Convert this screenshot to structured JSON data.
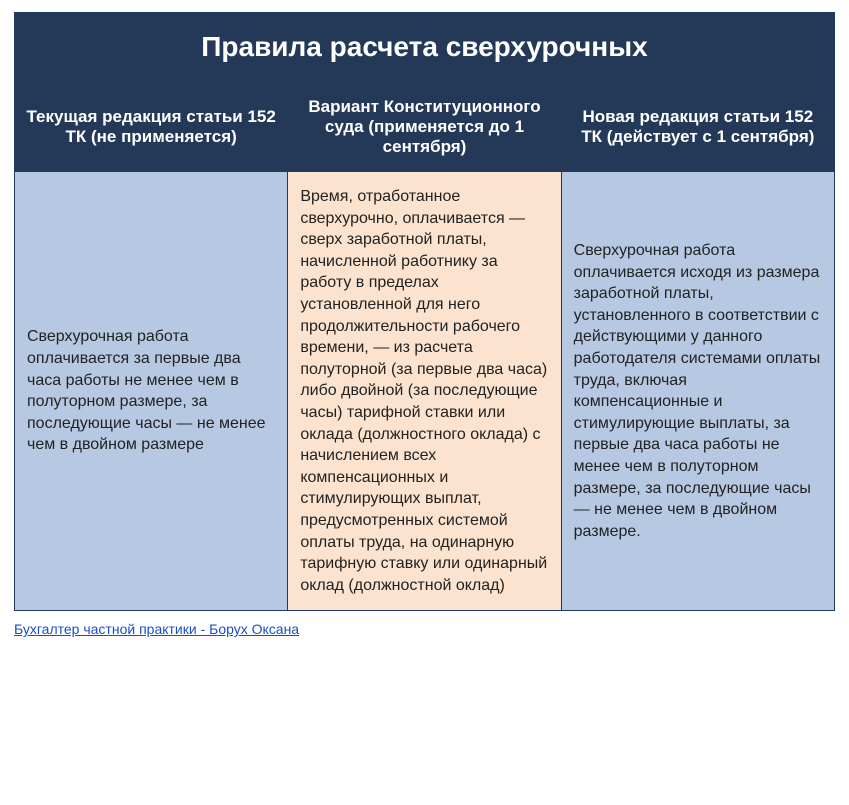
{
  "title": "Правила расчета сверхурочных",
  "columns": [
    "Текущая редакция статьи 152 ТК (не применяется)",
    "Вариант Конституционного суда (применяется до 1 сентября)",
    "Новая редакция статьи 152 ТК (действует с 1 сентября)"
  ],
  "rows": [
    [
      "Сверхурочная работа оплачивается за первые два часа работы не менее чем в полуторном размере, за последующие часы — не менее чем в двойном размере",
      "Время, отработанное сверхурочно, оплачивается — сверх заработной платы, начисленной работнику за работу в пределах установленной для него продолжительности рабочего времени, — из расчета полуторной (за первые два часа) либо двойной (за последующие часы) тарифной ставки или оклада (должностного оклада) с начислением всех компенсационных и стимулирующих выплат, предусмотренных системой оплаты труда, на одинарную тарифную ставку или одинарный оклад (должностной оклад)",
      "Сверхурочная работа оплачивается исходя из размера заработной платы, установленного в соответствии с действующими у данного работодателя системами оплаты труда, включая компенсационные и стимулирующие выплаты, за первые два часа работы не менее чем в полуторном размере, за последующие часы — не менее чем в двойном размере."
    ]
  ],
  "link_text": "Бухгалтер частной практики - Борух Оксана",
  "style": {
    "title_bg": "#243858",
    "title_color": "#ffffff",
    "title_fontsize": 28,
    "header_bg": "#243858",
    "header_color": "#ffffff",
    "header_fontsize": 17,
    "cell_fontsize": 16,
    "cell_color": "#222222",
    "cell_bg_cols": [
      "#b7c9e2",
      "#fbe3cf",
      "#b7c9e2"
    ],
    "border_color": "#1f3a5f",
    "link_color": "#1a4fc4",
    "title_padding": "18px 12px",
    "header_padding": "14px 10px",
    "cell_padding": "14px 12px"
  }
}
